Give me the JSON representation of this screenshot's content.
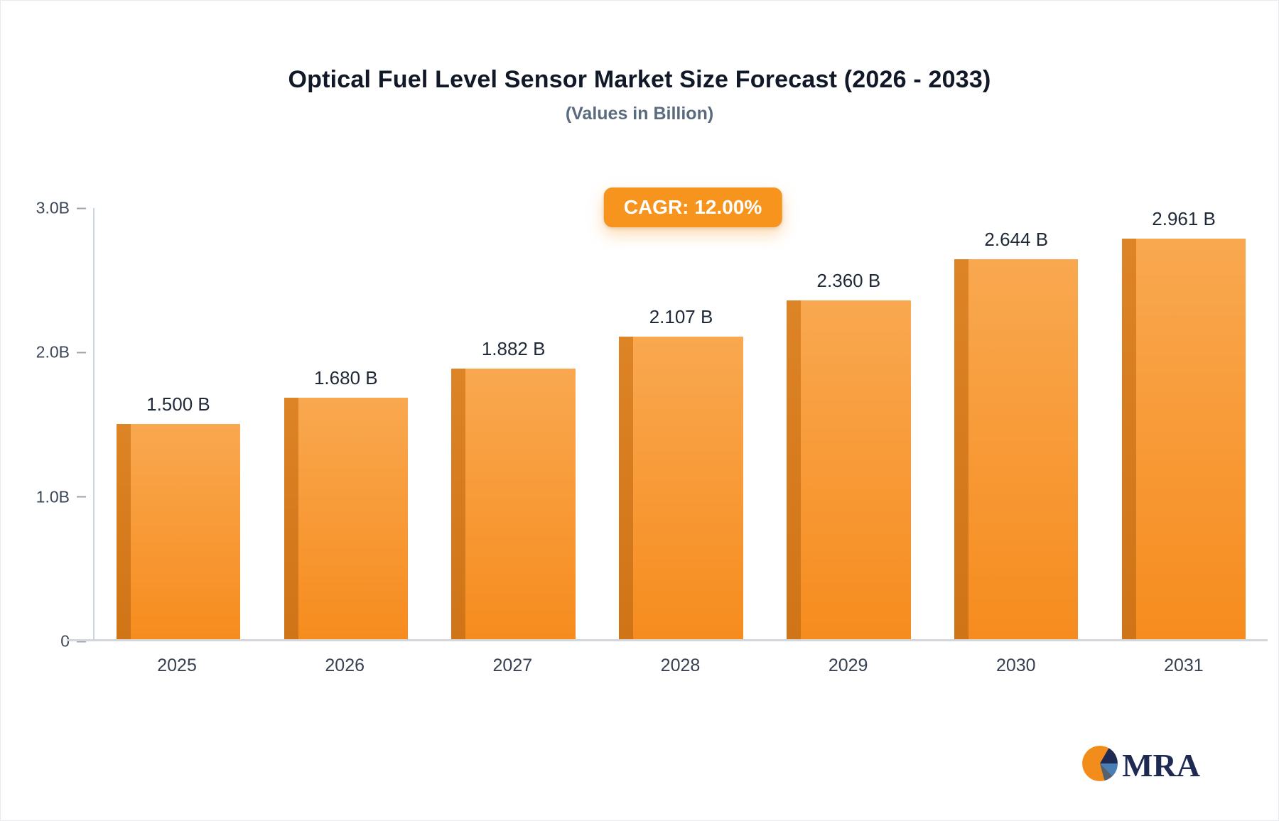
{
  "header": {
    "title": "Optical Fuel Level Sensor Market Size Forecast (2026 - 2033)",
    "subtitle": "(Values in Billion)"
  },
  "badge": {
    "label": "CAGR: 12.00%",
    "bg_color": "#f7941e",
    "text_color": "#ffffff"
  },
  "chart_data": {
    "type": "bar",
    "title": "Optical Fuel Level Sensor Market Size Forecast (2026 - 2033)",
    "subtitle": "(Values in Billion)",
    "annotation": "CAGR: 12.00%",
    "categories": [
      "2025",
      "2026",
      "2027",
      "2028",
      "2029",
      "2030",
      "2031"
    ],
    "values": [
      1.5,
      1.68,
      1.882,
      2.107,
      2.36,
      2.644,
      2.961
    ],
    "value_labels": [
      "1.500 B",
      "1.680 B",
      "1.882 B",
      "2.107 B",
      "2.360 B",
      "2.644 B",
      "2.961 B"
    ],
    "y_ticks": [
      {
        "label": "3.0B",
        "value": 3.0
      },
      {
        "label": "2.0B",
        "value": 2.0
      },
      {
        "label": "1.0B",
        "value": 1.0
      },
      {
        "label": "0",
        "value": 0.0
      }
    ],
    "ylim": [
      0,
      3.0
    ],
    "xlabel": "",
    "ylabel": "",
    "grid": false,
    "legend": false,
    "colors": {
      "bar_top": "#f9a850",
      "bar_bottom": "#f68c1e",
      "bar_side": "#cf7417",
      "axis": "#cbd5e1",
      "value_label": "#1f2937"
    }
  },
  "logo": {
    "text": "MRA"
  }
}
